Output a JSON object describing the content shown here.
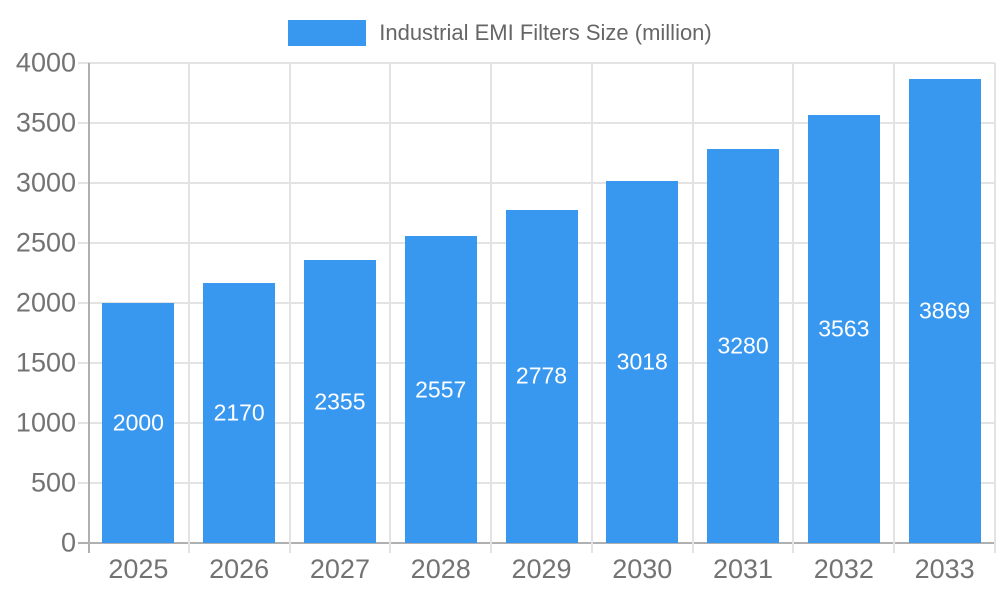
{
  "chart_data": {
    "type": "bar",
    "title": "Industrial EMI Filters Size (million)",
    "categories": [
      "2025",
      "2026",
      "2027",
      "2028",
      "2029",
      "2030",
      "2031",
      "2032",
      "2033"
    ],
    "values": [
      2000,
      2170,
      2355,
      2557,
      2778,
      3018,
      3280,
      3563,
      3869
    ],
    "xlabel": "",
    "ylabel": "",
    "ylim": [
      0,
      4000
    ],
    "ytick_step": 500,
    "grid": true,
    "legend_position": "top-center",
    "value_label_position": "inside-center"
  },
  "colors": {
    "bar": "#3898f0",
    "grid": "#e3e3e3",
    "axis": "#b0b0b0",
    "tick_label": "#737373",
    "legend_text": "#666666",
    "value_label": "#ffffff",
    "background": "#ffffff"
  }
}
